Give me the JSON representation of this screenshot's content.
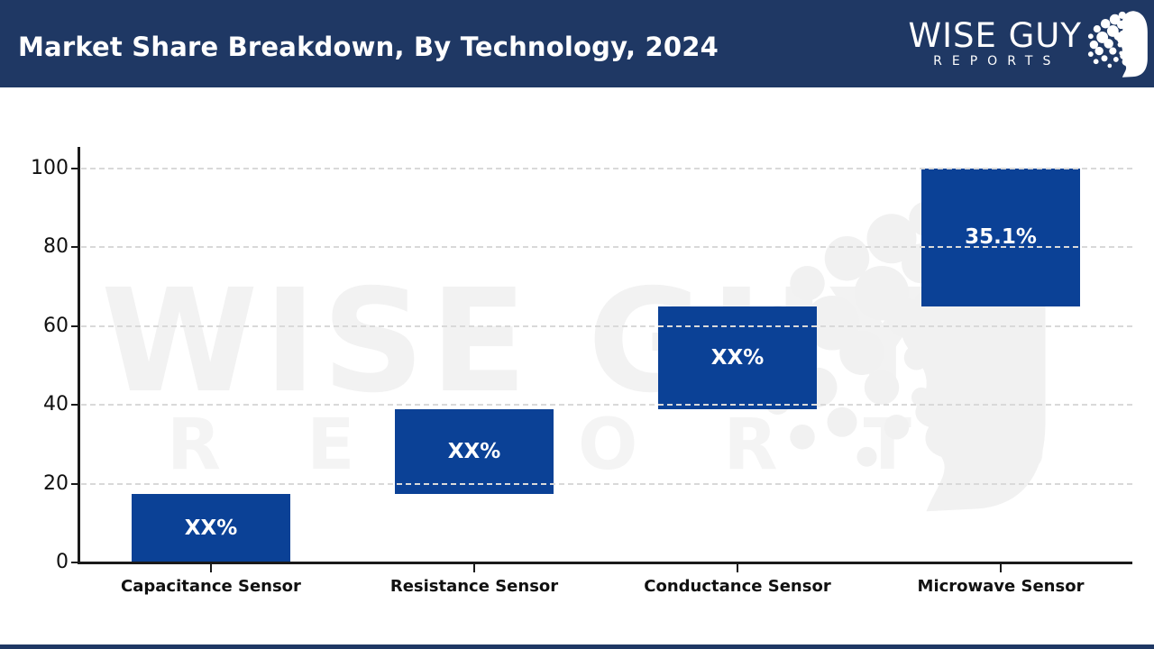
{
  "header": {
    "title": "Market Share Breakdown, By Technology, 2024",
    "logo": {
      "line1": "WISE GUY",
      "line2": "REPORTS"
    }
  },
  "watermark": {
    "line1": "WISE GUY",
    "line2": "R E P O R T S"
  },
  "colors": {
    "header_navy": "#1f3864",
    "bar_blue": "#0b4196",
    "grid_gray": "#d9d9d9",
    "axis_black": "#1a1a1a",
    "bar_label_white": "#ffffff",
    "watermark_gray": "#f2f2f2"
  },
  "chart_data": {
    "type": "bar",
    "subtype": "waterfall",
    "title": "Market Share Breakdown, By Technology, 2024",
    "categories": [
      "Capacitance Sensor",
      "Resistance Sensor",
      "Conductance Sensor",
      "Microwave Sensor"
    ],
    "bars": [
      {
        "category": "Capacitance Sensor",
        "start": 0,
        "value": 17.3,
        "label": "XX%"
      },
      {
        "category": "Resistance Sensor",
        "start": 17.3,
        "value": 21.6,
        "label": "XX%"
      },
      {
        "category": "Conductance Sensor",
        "start": 38.9,
        "value": 26.0,
        "label": "XX%"
      },
      {
        "category": "Microwave Sensor",
        "start": 64.9,
        "value": 35.1,
        "label": "35.1%"
      }
    ],
    "xlabel": "",
    "ylabel": "",
    "y_ticks": [
      0,
      20,
      40,
      60,
      80,
      100
    ],
    "ylim": [
      0,
      100
    ],
    "grid": "horizontal-dashed",
    "legend": "none"
  }
}
